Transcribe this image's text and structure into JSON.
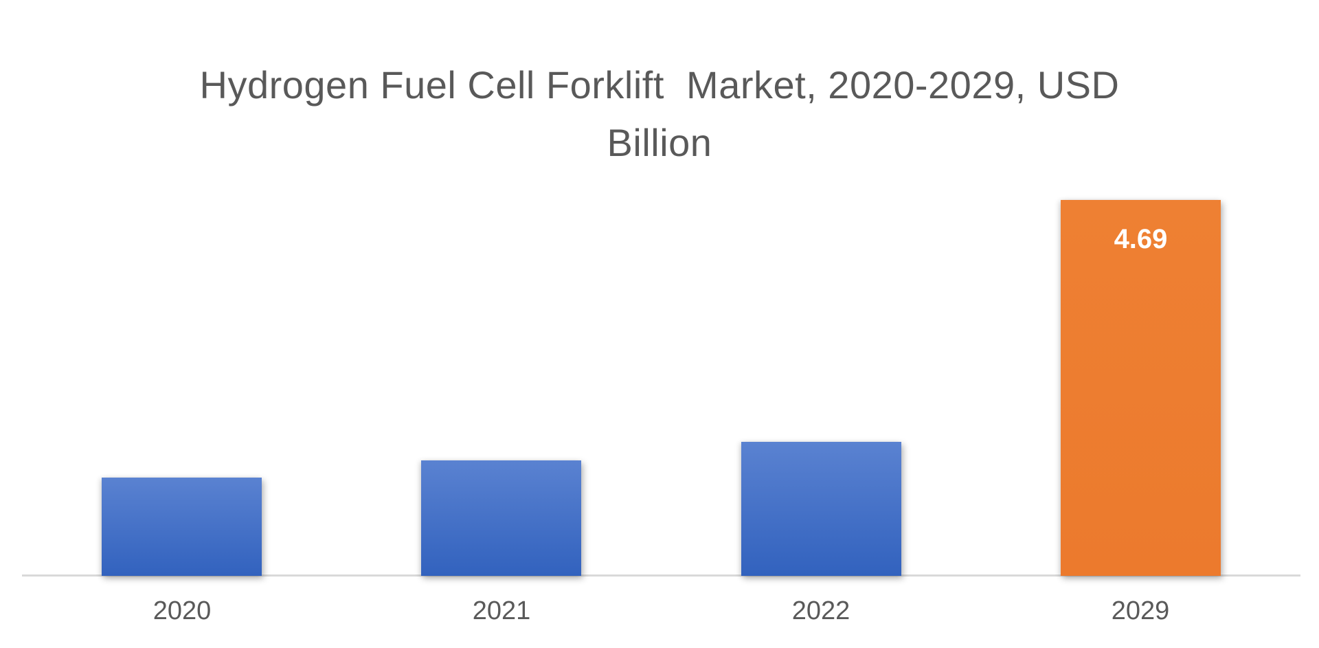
{
  "title": {
    "full": "Hydrogen Fuel Cell Forklift  Market, 2020-2029, USD Billion",
    "lines": [
      "Hydrogen Fuel Cell Forklift  Market, 2020-2029, USD",
      "Billion"
    ],
    "color": "#595959"
  },
  "chart_data": {
    "type": "bar",
    "title": "Hydrogen Fuel Cell Forklift  Market, 2020-2029, USD Billion",
    "unit": "USD Billion",
    "categories": [
      "2020",
      "2021",
      "2022",
      "2029"
    ],
    "values": [
      1.23,
      1.44,
      1.67,
      4.69
    ],
    "data_labels": [
      "",
      "",
      "",
      "4.69"
    ],
    "xlabel": "",
    "ylabel": "",
    "ylim": [
      0,
      4.69
    ],
    "gridlines": false,
    "y_axis_visible": false,
    "legend": "none",
    "bar_colors": [
      {
        "top": "#5a82d1",
        "bottom": "#3262be"
      },
      {
        "top": "#5a82d1",
        "bottom": "#3262be"
      },
      {
        "top": "#5a82d1",
        "bottom": "#3262be"
      },
      {
        "top": "#ee8033",
        "bottom": "#ec7a2d"
      }
    ],
    "axis_line_color": "#d9d9d9",
    "tick_label_color": "#595959",
    "data_label_color": "#ffffff"
  }
}
